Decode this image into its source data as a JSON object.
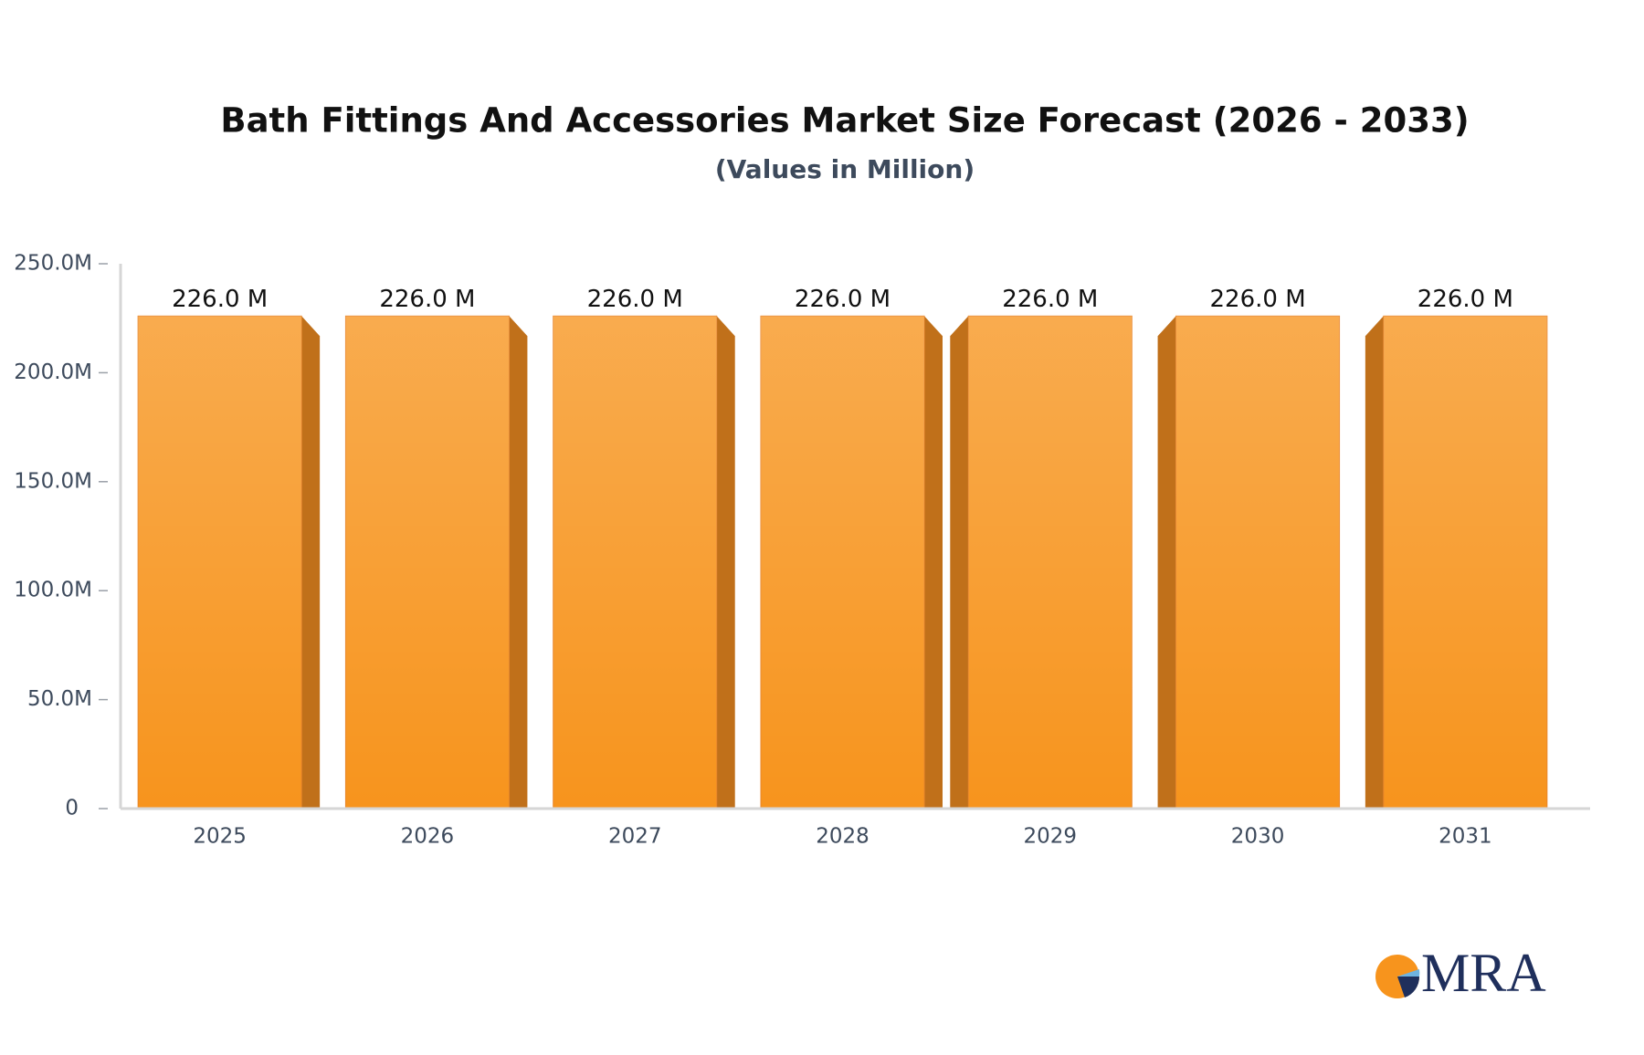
{
  "chart_data": {
    "type": "bar",
    "title": "Bath Fittings And Accessories Market Size Forecast (2026 - 2033)",
    "subtitle": "(Values in Million)",
    "categories": [
      "2025",
      "2026",
      "2027",
      "2028",
      "2029",
      "2030",
      "2031"
    ],
    "values": [
      226,
      226,
      226,
      226,
      226,
      226,
      226
    ],
    "value_labels": [
      "226.0 M",
      "226.0 M",
      "226.0 M",
      "226.0 M",
      "226.0 M",
      "226.0 M",
      "226.0 M"
    ],
    "color": "#f7941d",
    "shade_color": "#c0701a",
    "ylim": [
      0,
      250
    ],
    "yticks": [
      0,
      {
        "value": 50,
        "label": "50.0M"
      },
      {
        "value": 100,
        "label": "100.0M"
      },
      {
        "value": 150,
        "label": "150.0M"
      },
      {
        "value": 200,
        "label": "200.0M"
      },
      {
        "value": 250,
        "label": "250.0M"
      }
    ],
    "grid": false
  },
  "logo_text": "MRA"
}
